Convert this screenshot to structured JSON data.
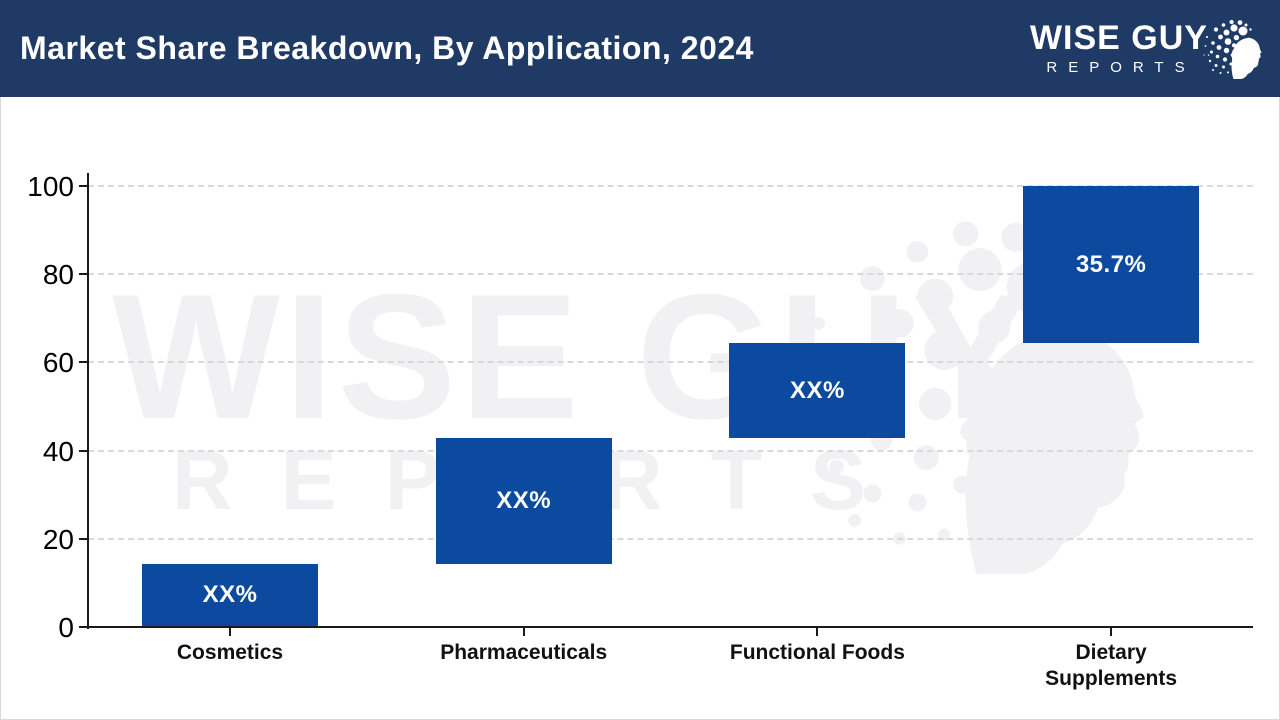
{
  "header": {
    "title": "Market Share Breakdown, By Application, 2024",
    "logo": {
      "brand_line1": "WISE GUY",
      "brand_line2": "REPORTS"
    },
    "bg_color": "#203a66"
  },
  "watermark": {
    "line1": "WISE GUY",
    "line2": "REPORTS"
  },
  "chart_data": {
    "type": "bar",
    "variant": "waterfall",
    "title": "Market Share Breakdown, By Application, 2024",
    "unit": "percent",
    "categories": [
      "Cosmetics",
      "Pharmaceuticals",
      "Functional Foods",
      "Dietary Supplements"
    ],
    "segments": [
      {
        "category": "Cosmetics",
        "start": 0,
        "end": 14.3,
        "label": "XX%"
      },
      {
        "category": "Pharmaceuticals",
        "start": 14.3,
        "end": 42.9,
        "label": "XX%"
      },
      {
        "category": "Functional Foods",
        "start": 42.9,
        "end": 64.3,
        "label": "XX%"
      },
      {
        "category": "Dietary Supplements",
        "start": 64.3,
        "end": 100,
        "label": "35.7%",
        "value": 35.7
      }
    ],
    "ylim": [
      0,
      100
    ],
    "yticks": [
      0,
      20,
      40,
      60,
      80,
      100
    ],
    "grid": "horizontal-dashed",
    "legend": "none",
    "colors": {
      "bar": "#0b4a9e",
      "bar_label": "#ffffff",
      "axis": "#1a1a1a",
      "gridline": "#d9d9d9",
      "header_bg": "#203a66",
      "watermark": "#f1f1f4"
    }
  }
}
